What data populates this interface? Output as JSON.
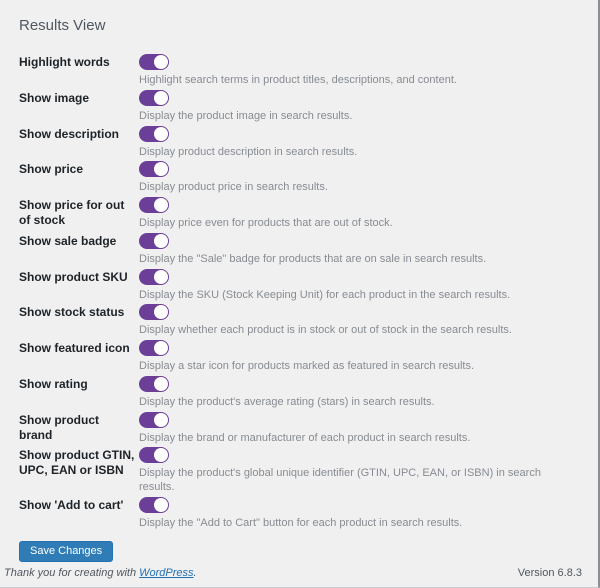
{
  "page": {
    "title": "Results View"
  },
  "colors": {
    "background": "#f0f0f1",
    "toggle_on": "#6b3e98",
    "button_blue": "#2f7cb7",
    "link_blue": "#2271b1"
  },
  "settings": [
    {
      "label": "Highlight words",
      "description": "Highlight search terms in product titles, descriptions, and content.",
      "enabled": true
    },
    {
      "label": "Show image",
      "description": "Display the product image in search results.",
      "enabled": true
    },
    {
      "label": "Show description",
      "description": "Display product description in search results.",
      "enabled": true
    },
    {
      "label": "Show price",
      "description": "Display product price in search results.",
      "enabled": true
    },
    {
      "label": "Show price for out of stock",
      "description": "Display price even for products that are out of stock.",
      "enabled": true
    },
    {
      "label": "Show sale badge",
      "description": "Display the \"Sale\" badge for products that are on sale in search results.",
      "enabled": true
    },
    {
      "label": "Show product SKU",
      "description": "Display the SKU (Stock Keeping Unit) for each product in the search results.",
      "enabled": true
    },
    {
      "label": "Show stock status",
      "description": "Display whether each product is in stock or out of stock in the search results.",
      "enabled": true
    },
    {
      "label": "Show featured icon",
      "description": "Display a star icon for products marked as featured in search results.",
      "enabled": true
    },
    {
      "label": "Show rating",
      "description": "Display the product's average rating (stars) in search results.",
      "enabled": true
    },
    {
      "label": "Show product brand",
      "description": "Display the brand or manufacturer of each product in search results.",
      "enabled": true
    },
    {
      "label": "Show product GTIN, UPC, EAN or ISBN",
      "description": "Display the product's global unique identifier (GTIN, UPC, EAN, or ISBN) in search results.",
      "enabled": true
    },
    {
      "label": "Show 'Add to cart'",
      "description": "Display the \"Add to Cart\" button for each product in search results.",
      "enabled": true
    }
  ],
  "save_button": {
    "label": "Save Changes"
  },
  "footer": {
    "thanks_prefix": "Thank you for creating with ",
    "link_label": "WordPress",
    "suffix": ".",
    "version": "Version 6.8.3"
  }
}
